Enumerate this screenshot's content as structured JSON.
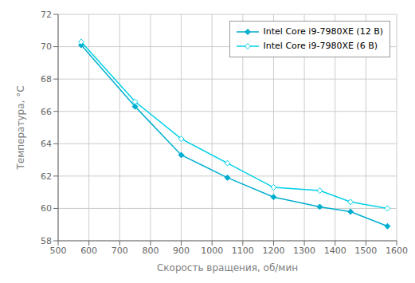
{
  "chart_data": {
    "type": "line",
    "x": [
      575,
      750,
      900,
      1050,
      1200,
      1350,
      1450,
      1570
    ],
    "series": [
      {
        "name": "Intel Core i9-7980XE (12 В)",
        "color": "#00afd0",
        "marker": "diamond",
        "values": [
          70.1,
          66.3,
          63.3,
          61.9,
          60.7,
          60.1,
          59.8,
          58.9
        ]
      },
      {
        "name": "Intel Core i9-7980XE (6 В)",
        "color": "#00d0e8",
        "marker": "open_diamond",
        "values": [
          70.3,
          66.6,
          64.3,
          62.8,
          61.3,
          61.1,
          60.4,
          60.0
        ]
      }
    ],
    "xlabel": "Скорость вращения, об/мин",
    "ylabel": "Температура, °C",
    "xlim": [
      500,
      1600
    ],
    "ylim": [
      58,
      72
    ],
    "xticks": [
      500,
      600,
      700,
      800,
      900,
      1000,
      1100,
      1200,
      1300,
      1400,
      1500,
      1600
    ],
    "yticks": [
      58,
      60,
      62,
      64,
      66,
      68,
      70,
      72
    ],
    "grid": true,
    "legend": "upper right"
  }
}
